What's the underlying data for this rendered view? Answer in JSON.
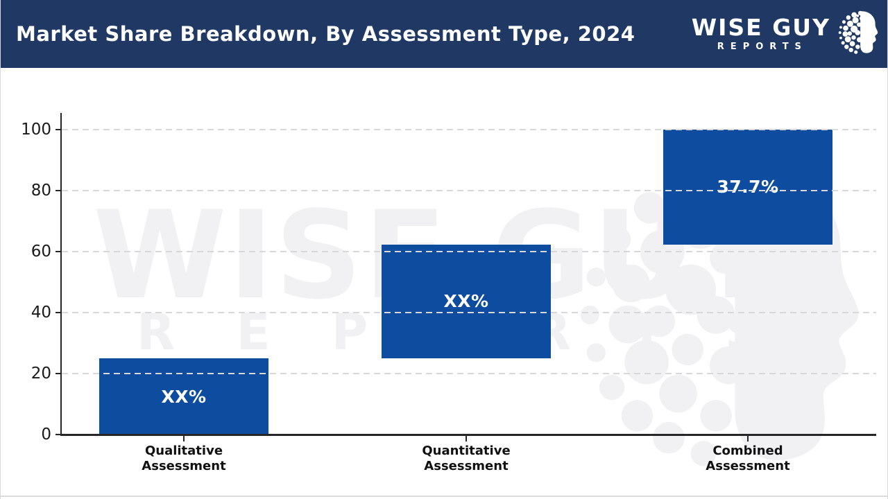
{
  "header": {
    "title": "Market Share Breakdown, By Assessment Type, 2024",
    "logo": {
      "name": "WISE GUY",
      "tagline": "REPORTS"
    }
  },
  "watermark": {
    "name": "WISE GUY",
    "tagline": "REPORTS"
  },
  "colors": {
    "header_bg": "#203864",
    "title_text": "#fdfdfd",
    "bar": "#0d4c9f",
    "bar_label_text": "#ffffff",
    "grid": "#d8d8d8",
    "axis": "#262626",
    "watermark": "#f1f1f4"
  },
  "chart_data": {
    "type": "bar",
    "subtype": "floating-waterfall",
    "title": "Market Share Breakdown, By Assessment Type, 2024",
    "categories": [
      [
        "Qualitative",
        "Assessment"
      ],
      [
        "Quantitative",
        "Assessment"
      ],
      [
        "Combined",
        "Assessment"
      ]
    ],
    "bars": [
      {
        "category": "Qualitative Assessment",
        "from": 0,
        "to": 25,
        "height": 25,
        "label": "XX%"
      },
      {
        "category": "Quantitative Assessment",
        "from": 25,
        "to": 62.3,
        "height": 37.3,
        "label": "XX%"
      },
      {
        "category": "Combined Assessment",
        "from": 62.3,
        "to": 100,
        "height": 37.7,
        "label": "37.7%"
      }
    ],
    "xlabel": "",
    "ylabel": "",
    "ylim": [
      0,
      100
    ],
    "yticks": [
      0,
      20,
      40,
      60,
      80,
      100
    ],
    "grid": {
      "axis": "y",
      "style": "dashed",
      "drawn_on_top_of_bars": true
    },
    "legend": "none"
  }
}
